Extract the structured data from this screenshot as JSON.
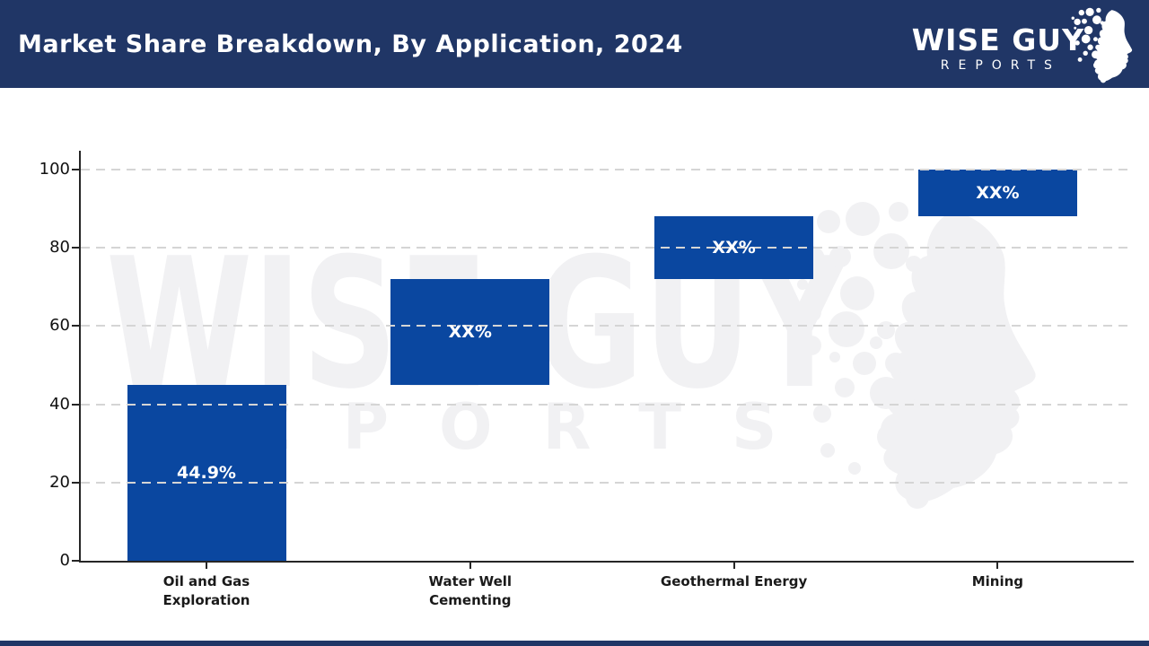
{
  "header": {
    "title": "Market Share Breakdown, By Application, 2024",
    "logo": {
      "line1": "WISE GUY",
      "line2": "REPORTS"
    }
  },
  "watermark": {
    "line1": "WISE GUY",
    "line2": "REPORTS"
  },
  "colors": {
    "header_bg": "#203666",
    "bar": "#0a47a0",
    "bar_label": "#ffffff",
    "gridline": "#d5d5d5",
    "axis": "#262626",
    "tick_label": "#111111",
    "watermark": "#f1f1f3"
  },
  "chart_data": {
    "type": "bar",
    "subtype": "waterfall",
    "title": "Market Share Breakdown, By Application, 2024",
    "categories": [
      "Oil and Gas Exploration",
      "Water Well Cementing",
      "Geothermal Energy",
      "Mining"
    ],
    "category_lines": [
      [
        "Oil and Gas",
        "Exploration"
      ],
      [
        "Water Well",
        "Cementing"
      ],
      [
        "Geothermal Energy"
      ],
      [
        "Mining"
      ]
    ],
    "segments": [
      {
        "category": "Oil and Gas Exploration",
        "start": 0,
        "end": 44.9,
        "label": "44.9%"
      },
      {
        "category": "Water Well Cementing",
        "start": 44.9,
        "end": 72,
        "label": "XX%"
      },
      {
        "category": "Geothermal Energy",
        "start": 72,
        "end": 88,
        "label": "XX%"
      },
      {
        "category": "Mining",
        "start": 88,
        "end": 100,
        "label": "XX%"
      }
    ],
    "yticks": [
      0,
      20,
      40,
      60,
      80,
      100
    ],
    "ylim": [
      0,
      105
    ],
    "xlabel": "",
    "ylabel": "",
    "grid": "horizontal-dashed",
    "legend": "none"
  }
}
